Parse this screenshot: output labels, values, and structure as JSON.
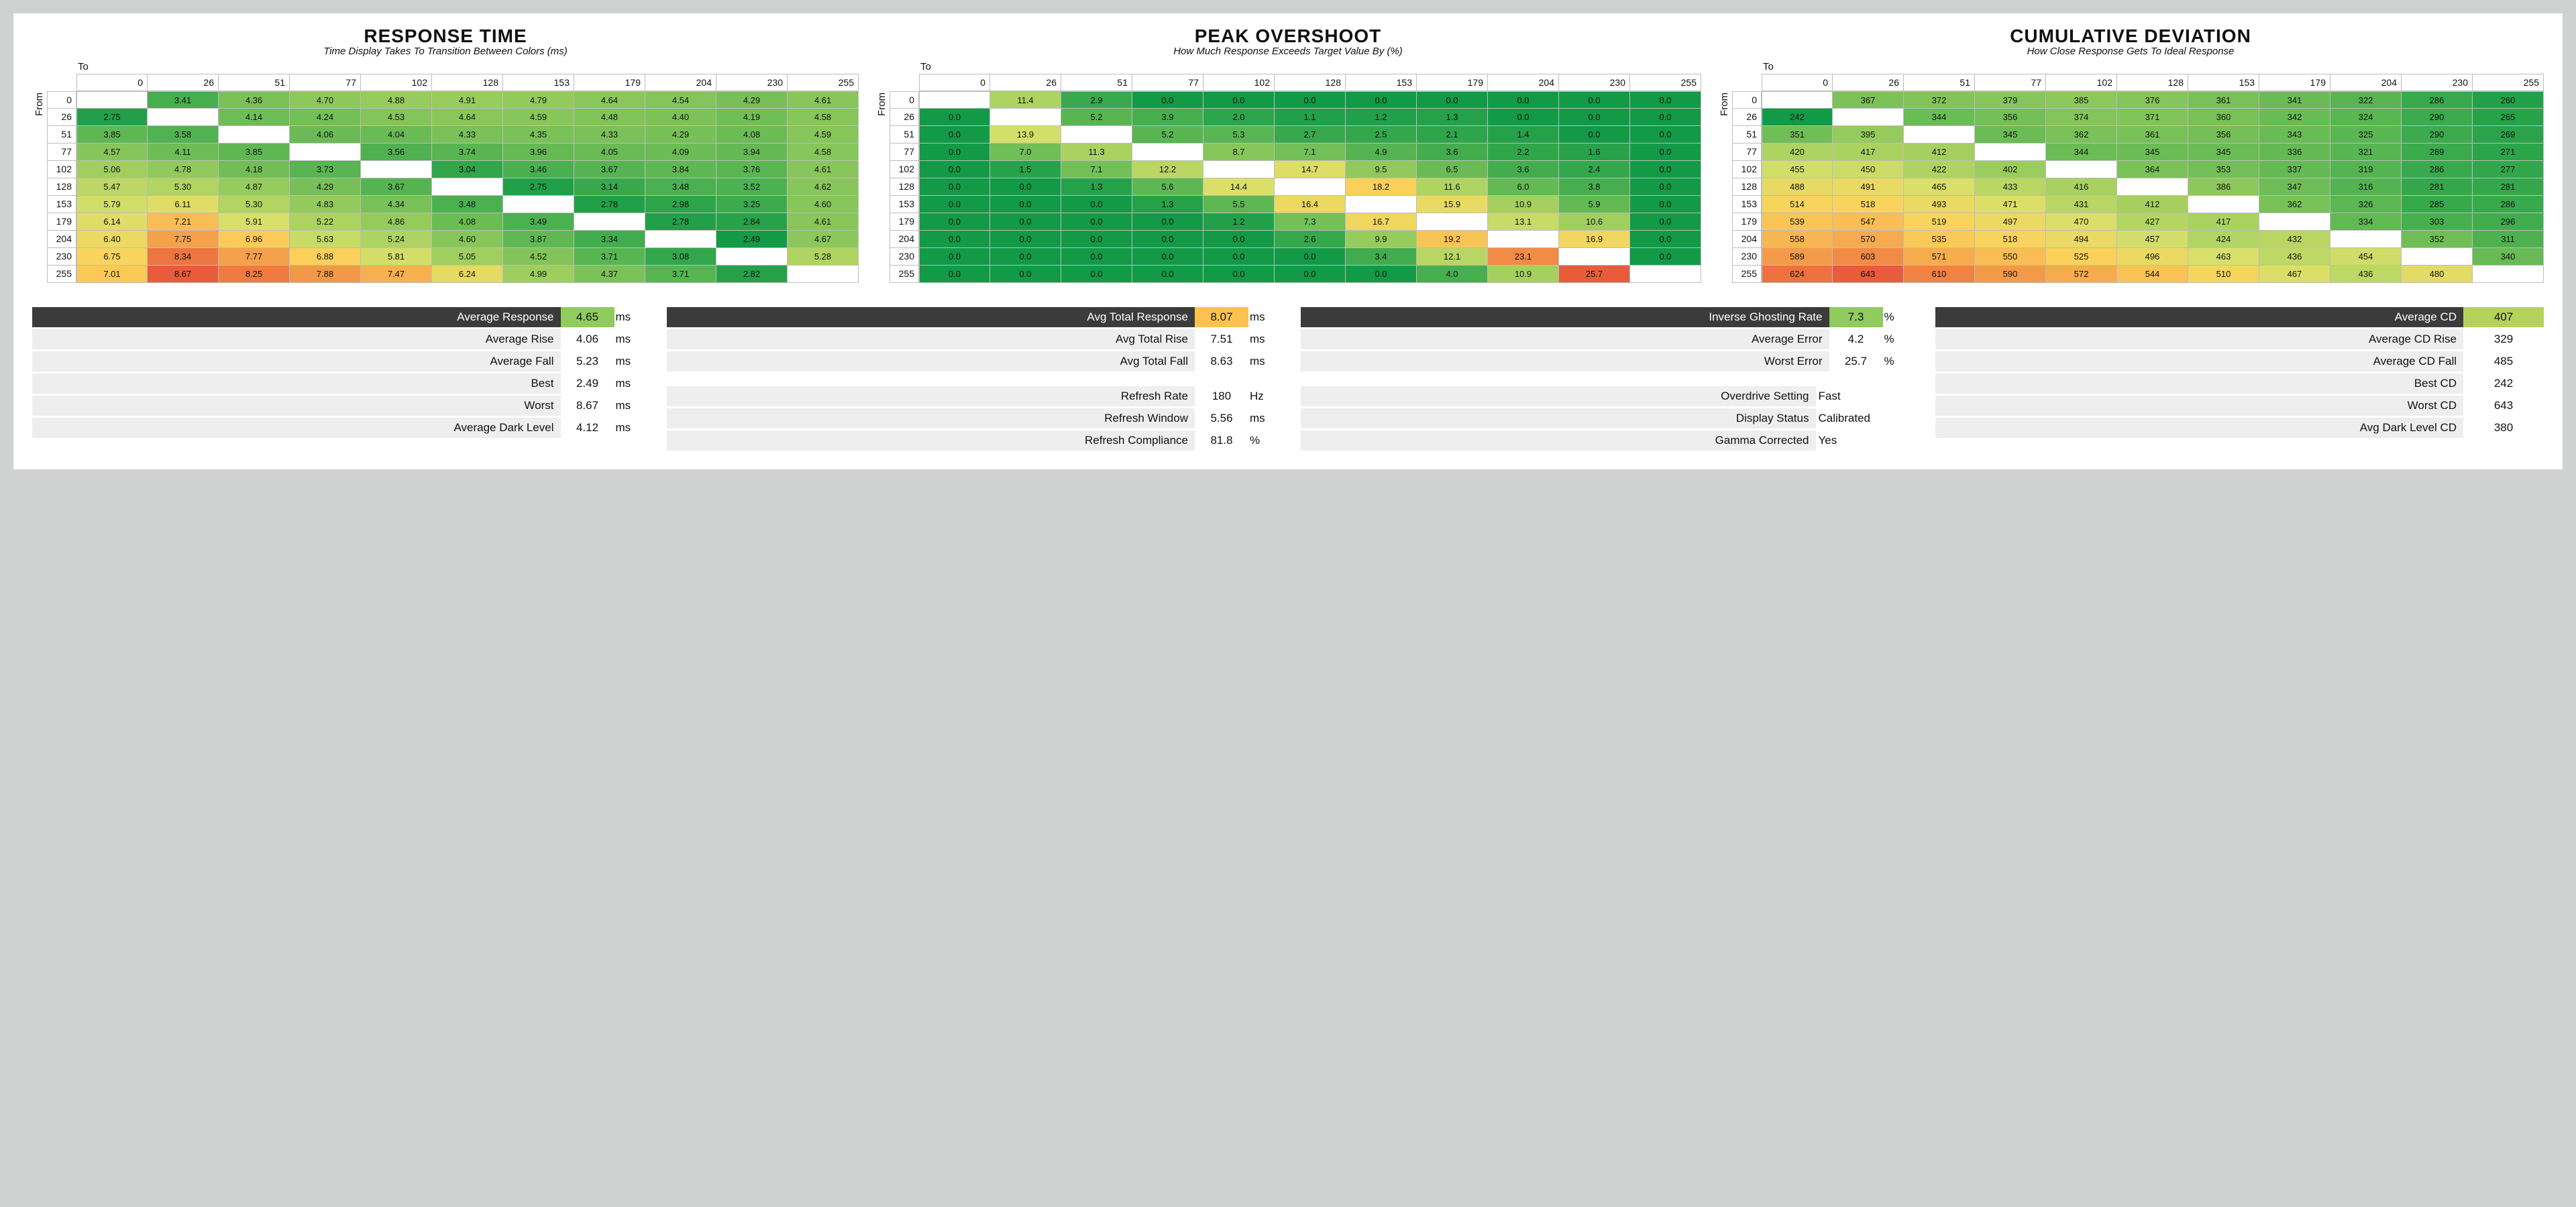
{
  "background_color": "#cfd2d0",
  "panel_color": "#ffffff",
  "grid_border_color": "#bdbdbd",
  "axis_levels": [
    "0",
    "26",
    "51",
    "77",
    "102",
    "128",
    "153",
    "179",
    "204",
    "230",
    "255"
  ],
  "axis_to_label": "To",
  "axis_from_label": "From",
  "color_ramp": {
    "stops": [
      {
        "t": 0.0,
        "color": "#129a46"
      },
      {
        "t": 0.2,
        "color": "#58b552"
      },
      {
        "t": 0.4,
        "color": "#9bcd5e"
      },
      {
        "t": 0.55,
        "color": "#d8e06a"
      },
      {
        "t": 0.7,
        "color": "#fbd35b"
      },
      {
        "t": 0.85,
        "color": "#f5a24a"
      },
      {
        "t": 1.0,
        "color": "#e85c3c"
      }
    ]
  },
  "heatmaps": [
    {
      "title": "RESPONSE TIME",
      "subtitle": "Time Display Takes To Transition Between Colors (ms)",
      "decimals": 2,
      "color_min": 2.49,
      "color_max": 8.67,
      "data": [
        [
          null,
          3.41,
          4.36,
          4.7,
          4.88,
          4.91,
          4.79,
          4.64,
          4.54,
          4.29,
          4.61
        ],
        [
          2.75,
          null,
          4.14,
          4.24,
          4.53,
          4.64,
          4.59,
          4.48,
          4.4,
          4.19,
          4.58
        ],
        [
          3.85,
          3.58,
          null,
          4.06,
          4.04,
          4.33,
          4.35,
          4.33,
          4.29,
          4.08,
          4.59
        ],
        [
          4.57,
          4.11,
          3.85,
          null,
          3.56,
          3.74,
          3.96,
          4.05,
          4.09,
          3.94,
          4.58
        ],
        [
          5.06,
          4.78,
          4.18,
          3.73,
          null,
          3.04,
          3.46,
          3.67,
          3.84,
          3.76,
          4.61
        ],
        [
          5.47,
          5.3,
          4.87,
          4.29,
          3.67,
          null,
          2.75,
          3.14,
          3.48,
          3.52,
          4.62
        ],
        [
          5.79,
          6.11,
          5.3,
          4.83,
          4.34,
          3.48,
          null,
          2.78,
          2.98,
          3.25,
          4.6
        ],
        [
          6.14,
          7.21,
          5.91,
          5.22,
          4.86,
          4.08,
          3.49,
          null,
          2.78,
          2.84,
          4.61
        ],
        [
          6.4,
          7.75,
          6.96,
          5.63,
          5.24,
          4.6,
          3.87,
          3.34,
          null,
          2.49,
          4.67
        ],
        [
          6.75,
          8.34,
          7.77,
          6.88,
          5.81,
          5.05,
          4.52,
          3.71,
          3.08,
          null,
          5.28
        ],
        [
          7.01,
          8.67,
          8.25,
          7.88,
          7.47,
          6.24,
          4.99,
          4.37,
          3.71,
          2.82,
          null
        ]
      ]
    },
    {
      "title": "PEAK OVERSHOOT",
      "subtitle": "How Much Response Exceeds Target Value By (%)",
      "decimals": 1,
      "color_min": 0.0,
      "color_max": 25.7,
      "data": [
        [
          null,
          11.4,
          2.9,
          0.0,
          0.0,
          0.0,
          0.0,
          0.0,
          0.0,
          0.0,
          0.0
        ],
        [
          0.0,
          null,
          5.2,
          3.9,
          2.0,
          1.1,
          1.2,
          1.3,
          0.0,
          0.0,
          0.0
        ],
        [
          0.0,
          13.9,
          null,
          5.2,
          5.3,
          2.7,
          2.5,
          2.1,
          1.4,
          0.0,
          0.0
        ],
        [
          0.0,
          7.0,
          11.3,
          null,
          8.7,
          7.1,
          4.9,
          3.6,
          2.2,
          1.6,
          0.0
        ],
        [
          0.0,
          1.5,
          7.1,
          12.2,
          null,
          14.7,
          9.5,
          6.5,
          3.6,
          2.4,
          0.0
        ],
        [
          0.0,
          0.0,
          1.3,
          5.6,
          14.4,
          null,
          18.2,
          11.6,
          6.0,
          3.8,
          0.0
        ],
        [
          0.0,
          0.0,
          0.0,
          1.3,
          5.5,
          16.4,
          null,
          15.9,
          10.9,
          5.9,
          0.0
        ],
        [
          0.0,
          0.0,
          0.0,
          0.0,
          1.2,
          7.3,
          16.7,
          null,
          13.1,
          10.6,
          0.0
        ],
        [
          0.0,
          0.0,
          0.0,
          0.0,
          0.0,
          2.6,
          9.9,
          19.2,
          null,
          16.9,
          0.0
        ],
        [
          0.0,
          0.0,
          0.0,
          0.0,
          0.0,
          0.0,
          3.4,
          12.1,
          23.1,
          null,
          0.0
        ],
        [
          0.0,
          0.0,
          0.0,
          0.0,
          0.0,
          0.0,
          0.0,
          4.0,
          10.9,
          25.7,
          null
        ]
      ]
    },
    {
      "title": "CUMULATIVE DEVIATION",
      "subtitle": "How Close Response Gets To Ideal Response",
      "decimals": 0,
      "color_min": 242,
      "color_max": 643,
      "data": [
        [
          null,
          367,
          372,
          379,
          385,
          376,
          361,
          341,
          322,
          286,
          260
        ],
        [
          242,
          null,
          344,
          356,
          374,
          371,
          360,
          342,
          324,
          290,
          265
        ],
        [
          351,
          395,
          null,
          345,
          362,
          361,
          356,
          343,
          325,
          290,
          269
        ],
        [
          420,
          417,
          412,
          null,
          344,
          345,
          345,
          336,
          321,
          289,
          271
        ],
        [
          455,
          450,
          422,
          402,
          null,
          364,
          353,
          337,
          319,
          286,
          277
        ],
        [
          488,
          491,
          465,
          433,
          416,
          null,
          386,
          347,
          316,
          281,
          281
        ],
        [
          514,
          518,
          493,
          471,
          431,
          412,
          null,
          362,
          326,
          285,
          286
        ],
        [
          539,
          547,
          519,
          497,
          470,
          427,
          417,
          null,
          334,
          303,
          296
        ],
        [
          558,
          570,
          535,
          518,
          494,
          457,
          424,
          432,
          null,
          352,
          311
        ],
        [
          589,
          603,
          571,
          550,
          525,
          496,
          463,
          436,
          454,
          null,
          340
        ],
        [
          624,
          643,
          610,
          590,
          572,
          544,
          510,
          467,
          436,
          480,
          null
        ]
      ]
    }
  ],
  "summary_groups": [
    [
      {
        "rows": [
          {
            "label": "Average Response",
            "value": "4.65",
            "unit": "ms",
            "header": true,
            "value_bg": "#8fcb5d"
          },
          {
            "label": "Average Rise",
            "value": "4.06",
            "unit": "ms"
          },
          {
            "label": "Average Fall",
            "value": "5.23",
            "unit": "ms"
          },
          {
            "label": "Best",
            "value": "2.49",
            "unit": "ms"
          },
          {
            "label": "Worst",
            "value": "8.67",
            "unit": "ms"
          },
          {
            "label": "Average Dark Level",
            "value": "4.12",
            "unit": "ms"
          }
        ]
      }
    ],
    [
      {
        "rows": [
          {
            "label": "Avg Total Response",
            "value": "8.07",
            "unit": "ms",
            "header": true,
            "value_bg": "#fbc24f"
          },
          {
            "label": "Avg Total Rise",
            "value": "7.51",
            "unit": "ms"
          },
          {
            "label": "Avg Total Fall",
            "value": "8.63",
            "unit": "ms"
          }
        ]
      },
      {
        "rows": [
          {
            "label": "Refresh Rate",
            "value": "180",
            "unit": "Hz"
          },
          {
            "label": "Refresh Window",
            "value": "5.56",
            "unit": "ms"
          },
          {
            "label": "Refresh Compliance",
            "value": "81.8",
            "unit": "%"
          }
        ]
      }
    ],
    [
      {
        "rows": [
          {
            "label": "Inverse Ghosting Rate",
            "value": "7.3",
            "unit": "%",
            "header": true,
            "value_bg": "#8fcb5d"
          },
          {
            "label": "Average Error",
            "value": "4.2",
            "unit": "%"
          },
          {
            "label": "Worst Error",
            "value": "25.7",
            "unit": "%"
          }
        ]
      },
      {
        "wide_val": true,
        "rows": [
          {
            "label": "Overdrive Setting",
            "value": "Fast",
            "val_left": true
          },
          {
            "label": "Display Status",
            "value": "Calibrated",
            "val_left": true
          },
          {
            "label": "Gamma Corrected",
            "value": "Yes",
            "val_left": true
          }
        ]
      }
    ],
    [
      {
        "no_unit": true,
        "rows": [
          {
            "label": "Average CD",
            "value": "407",
            "header": true,
            "value_bg": "#b5d35b"
          },
          {
            "label": "Average CD Rise",
            "value": "329"
          },
          {
            "label": "Average CD Fall",
            "value": "485"
          },
          {
            "label": "Best CD",
            "value": "242"
          },
          {
            "label": "Worst CD",
            "value": "643"
          },
          {
            "label": "Avg Dark Level CD",
            "value": "380"
          }
        ]
      }
    ]
  ]
}
